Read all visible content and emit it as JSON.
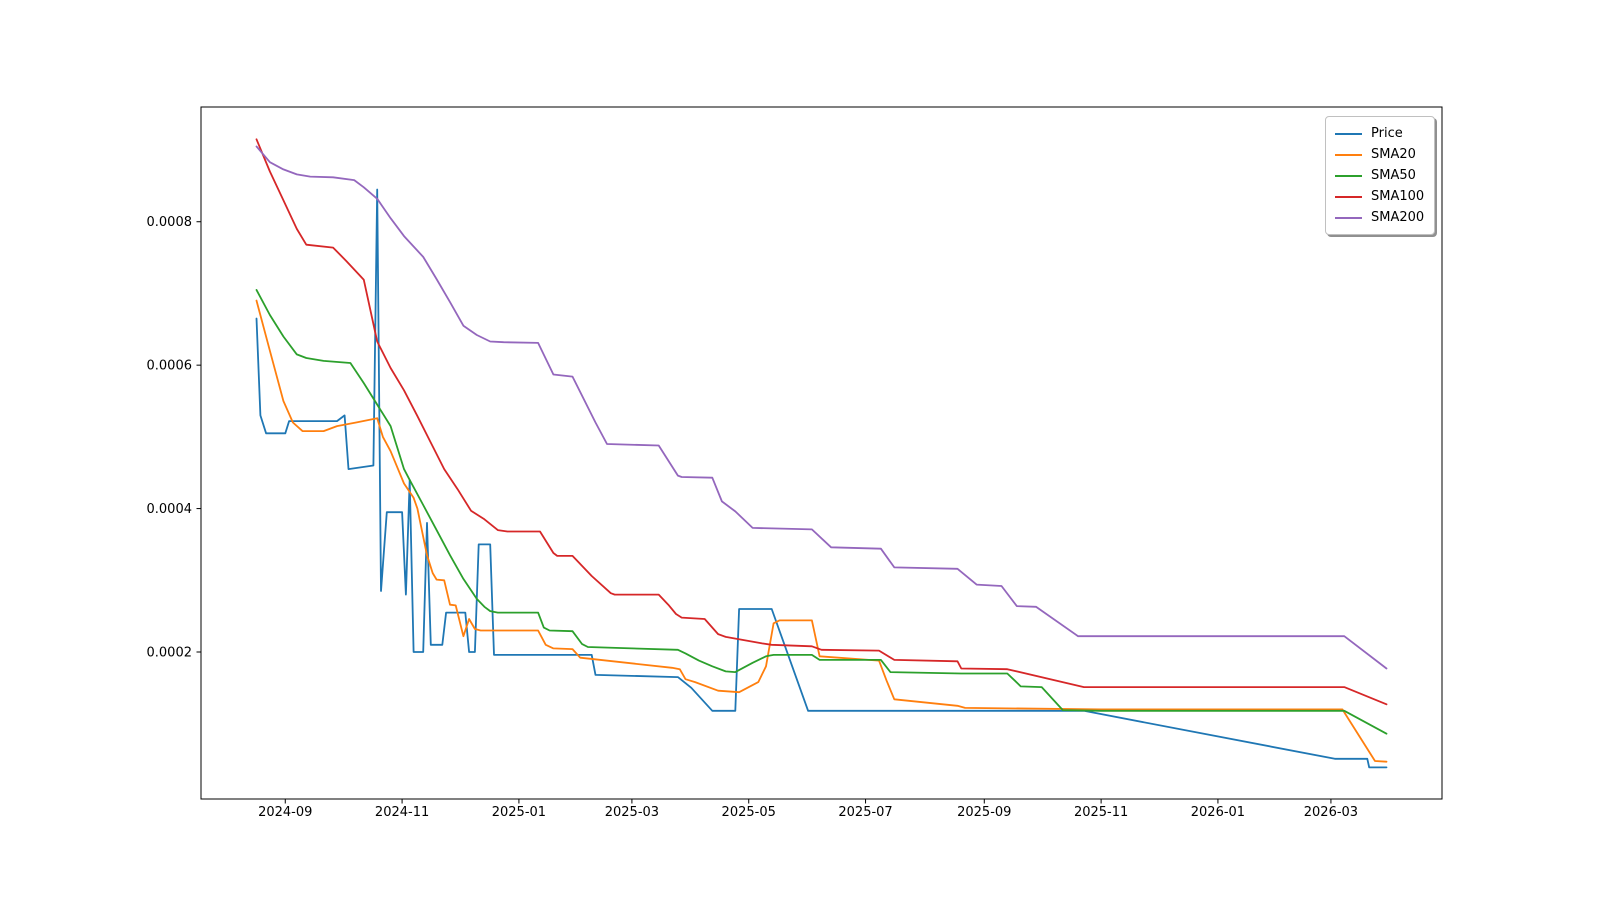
{
  "figure": {
    "background": "#ffffff"
  },
  "chart_data": {
    "type": "line",
    "title": "",
    "xlabel": "",
    "ylabel": "",
    "grid": false,
    "legend_position": "upper right",
    "xlim": [
      "2024-07-19",
      "2026-04-28"
    ],
    "ylim": [
      -5e-06,
      0.00096
    ],
    "x_ticks": [
      {
        "date": "2024-09-01",
        "label": "2024-09"
      },
      {
        "date": "2024-11-01",
        "label": "2024-11"
      },
      {
        "date": "2025-01-01",
        "label": "2025-01"
      },
      {
        "date": "2025-03-01",
        "label": "2025-03"
      },
      {
        "date": "2025-05-01",
        "label": "2025-05"
      },
      {
        "date": "2025-07-01",
        "label": "2025-07"
      },
      {
        "date": "2025-09-01",
        "label": "2025-09"
      },
      {
        "date": "2025-11-01",
        "label": "2025-11"
      },
      {
        "date": "2026-01-01",
        "label": "2026-01"
      },
      {
        "date": "2026-03-01",
        "label": "2026-03"
      }
    ],
    "y_ticks": [
      {
        "value": 0.0002,
        "label": "0.0002"
      },
      {
        "value": 0.0004,
        "label": "0.0004"
      },
      {
        "value": 0.0006,
        "label": "0.0006"
      },
      {
        "value": 0.0008,
        "label": "0.0008"
      }
    ],
    "series": [
      {
        "name": "Price",
        "color": "#1f77b4",
        "points": [
          [
            "2024-08-17",
            0.000665
          ],
          [
            "2024-08-19",
            0.00053
          ],
          [
            "2024-08-22",
            0.000505
          ],
          [
            "2024-09-01",
            0.000505
          ],
          [
            "2024-09-03",
            0.000522
          ],
          [
            "2024-09-28",
            0.000522
          ],
          [
            "2024-10-02",
            0.00053
          ],
          [
            "2024-10-04",
            0.000455
          ],
          [
            "2024-10-17",
            0.00046
          ],
          [
            "2024-10-19",
            0.000845
          ],
          [
            "2024-10-21",
            0.000285
          ],
          [
            "2024-10-24",
            0.000395
          ],
          [
            "2024-11-01",
            0.000395
          ],
          [
            "2024-11-03",
            0.00028
          ],
          [
            "2024-11-05",
            0.00044
          ],
          [
            "2024-11-07",
            0.0002
          ],
          [
            "2024-11-12",
            0.0002
          ],
          [
            "2024-11-14",
            0.00038
          ],
          [
            "2024-11-16",
            0.00021
          ],
          [
            "2024-11-22",
            0.00021
          ],
          [
            "2024-11-24",
            0.000255
          ],
          [
            "2024-12-04",
            0.000255
          ],
          [
            "2024-12-06",
            0.0002
          ],
          [
            "2024-12-09",
            0.0002
          ],
          [
            "2024-12-11",
            0.00035
          ],
          [
            "2024-12-17",
            0.00035
          ],
          [
            "2024-12-19",
            0.000196
          ],
          [
            "2025-02-08",
            0.000196
          ],
          [
            "2025-02-10",
            0.000168
          ],
          [
            "2025-03-25",
            0.000165
          ],
          [
            "2025-04-01",
            0.00015
          ],
          [
            "2025-04-12",
            0.000118
          ],
          [
            "2025-04-24",
            0.000118
          ],
          [
            "2025-04-26",
            0.00026
          ],
          [
            "2025-05-13",
            0.00026
          ],
          [
            "2025-06-01",
            0.000118
          ],
          [
            "2025-10-23",
            0.000118
          ],
          [
            "2026-03-03",
            5.1e-05
          ],
          [
            "2026-03-20",
            5.1e-05
          ],
          [
            "2026-03-21",
            3.9e-05
          ],
          [
            "2026-03-30",
            3.9e-05
          ]
        ]
      },
      {
        "name": "SMA20",
        "color": "#ff7f0e",
        "points": [
          [
            "2024-08-17",
            0.00069
          ],
          [
            "2024-08-24",
            0.00062
          ],
          [
            "2024-08-31",
            0.00055
          ],
          [
            "2024-09-05",
            0.00052
          ],
          [
            "2024-09-10",
            0.000508
          ],
          [
            "2024-09-21",
            0.000508
          ],
          [
            "2024-09-28",
            0.000515
          ],
          [
            "2024-10-08",
            0.00052
          ],
          [
            "2024-10-19",
            0.000526
          ],
          [
            "2024-10-22",
            0.0005
          ],
          [
            "2024-10-26",
            0.00048
          ],
          [
            "2024-11-02",
            0.000435
          ],
          [
            "2024-11-07",
            0.000415
          ],
          [
            "2024-11-09",
            0.0004
          ],
          [
            "2024-11-14",
            0.000335
          ],
          [
            "2024-11-17",
            0.00031
          ],
          [
            "2024-11-19",
            0.000301
          ],
          [
            "2024-11-23",
            0.0003
          ],
          [
            "2024-11-26",
            0.000266
          ],
          [
            "2024-11-29",
            0.000265
          ],
          [
            "2024-12-03",
            0.000222
          ],
          [
            "2024-12-06",
            0.000246
          ],
          [
            "2024-12-09",
            0.000232
          ],
          [
            "2024-12-12",
            0.00023
          ],
          [
            "2025-01-11",
            0.00023
          ],
          [
            "2025-01-15",
            0.00021
          ],
          [
            "2025-01-19",
            0.000205
          ],
          [
            "2025-01-29",
            0.000204
          ],
          [
            "2025-02-02",
            0.000192
          ],
          [
            "2025-03-22",
            0.000178
          ],
          [
            "2025-03-26",
            0.000176
          ],
          [
            "2025-03-29",
            0.000162
          ],
          [
            "2025-04-03",
            0.000158
          ],
          [
            "2025-04-15",
            0.000146
          ],
          [
            "2025-04-26",
            0.000144
          ],
          [
            "2025-05-06",
            0.000158
          ],
          [
            "2025-05-10",
            0.00018
          ],
          [
            "2025-05-14",
            0.00024
          ],
          [
            "2025-05-17",
            0.000244
          ],
          [
            "2025-06-03",
            0.000244
          ],
          [
            "2025-06-07",
            0.000194
          ],
          [
            "2025-07-08",
            0.000188
          ],
          [
            "2025-07-12",
            0.00016
          ],
          [
            "2025-07-16",
            0.000134
          ],
          [
            "2025-08-18",
            0.000125
          ],
          [
            "2025-08-22",
            0.000122
          ],
          [
            "2025-11-01",
            0.00012
          ],
          [
            "2026-03-07",
            0.00012
          ],
          [
            "2026-03-24",
            4.8e-05
          ],
          [
            "2026-03-30",
            4.7e-05
          ]
        ]
      },
      {
        "name": "SMA50",
        "color": "#2ca02c",
        "points": [
          [
            "2024-08-17",
            0.000705
          ],
          [
            "2024-08-24",
            0.00067
          ],
          [
            "2024-08-31",
            0.00064
          ],
          [
            "2024-09-07",
            0.000615
          ],
          [
            "2024-09-12",
            0.00061
          ],
          [
            "2024-09-21",
            0.000606
          ],
          [
            "2024-10-05",
            0.000603
          ],
          [
            "2024-10-12",
            0.000575
          ],
          [
            "2024-10-19",
            0.000545
          ],
          [
            "2024-10-26",
            0.000515
          ],
          [
            "2024-11-02",
            0.000455
          ],
          [
            "2024-11-05",
            0.00044
          ],
          [
            "2024-11-12",
            0.000405
          ],
          [
            "2024-11-19",
            0.00037
          ],
          [
            "2024-11-26",
            0.000335
          ],
          [
            "2024-12-03",
            0.000302
          ],
          [
            "2024-12-10",
            0.000274
          ],
          [
            "2024-12-14",
            0.000263
          ],
          [
            "2024-12-17",
            0.000257
          ],
          [
            "2024-12-21",
            0.000255
          ],
          [
            "2025-01-11",
            0.000255
          ],
          [
            "2025-01-14",
            0.000234
          ],
          [
            "2025-01-17",
            0.00023
          ],
          [
            "2025-01-29",
            0.000229
          ],
          [
            "2025-02-03",
            0.000211
          ],
          [
            "2025-02-06",
            0.000207
          ],
          [
            "2025-03-25",
            0.000203
          ],
          [
            "2025-03-29",
            0.000198
          ],
          [
            "2025-04-05",
            0.000188
          ],
          [
            "2025-04-12",
            0.00018
          ],
          [
            "2025-04-19",
            0.000173
          ],
          [
            "2025-04-24",
            0.000172
          ],
          [
            "2025-05-03",
            0.000185
          ],
          [
            "2025-05-10",
            0.000194
          ],
          [
            "2025-05-14",
            0.000196
          ],
          [
            "2025-06-03",
            0.000196
          ],
          [
            "2025-06-07",
            0.000189
          ],
          [
            "2025-07-09",
            0.000189
          ],
          [
            "2025-07-14",
            0.000172
          ],
          [
            "2025-08-20",
            0.00017
          ],
          [
            "2025-09-13",
            0.00017
          ],
          [
            "2025-09-17",
            0.00016
          ],
          [
            "2025-09-20",
            0.000152
          ],
          [
            "2025-10-01",
            0.000151
          ],
          [
            "2025-10-12",
            0.000119
          ],
          [
            "2025-11-01",
            0.000118
          ],
          [
            "2026-03-08",
            0.000118
          ],
          [
            "2026-03-30",
            8.6e-05
          ]
        ]
      },
      {
        "name": "SMA100",
        "color": "#d62728",
        "points": [
          [
            "2024-08-17",
            0.000915
          ],
          [
            "2024-08-24",
            0.00087
          ],
          [
            "2024-08-31",
            0.00083
          ],
          [
            "2024-09-07",
            0.00079
          ],
          [
            "2024-09-12",
            0.000768
          ],
          [
            "2024-09-26",
            0.000764
          ],
          [
            "2024-10-03",
            0.000745
          ],
          [
            "2024-10-12",
            0.000719
          ],
          [
            "2024-10-19",
            0.000633
          ],
          [
            "2024-10-26",
            0.000596
          ],
          [
            "2024-11-02",
            0.000565
          ],
          [
            "2024-11-09",
            0.000529
          ],
          [
            "2024-11-16",
            0.000492
          ],
          [
            "2024-11-23",
            0.000455
          ],
          [
            "2024-11-30",
            0.000427
          ],
          [
            "2024-12-07",
            0.000397
          ],
          [
            "2024-12-14",
            0.000385
          ],
          [
            "2024-12-21",
            0.00037
          ],
          [
            "2024-12-26",
            0.000368
          ],
          [
            "2025-01-12",
            0.000368
          ],
          [
            "2025-01-19",
            0.000338
          ],
          [
            "2025-01-21",
            0.000334
          ],
          [
            "2025-01-29",
            0.000334
          ],
          [
            "2025-02-08",
            0.000306
          ],
          [
            "2025-02-18",
            0.000282
          ],
          [
            "2025-02-20",
            0.00028
          ],
          [
            "2025-03-15",
            0.00028
          ],
          [
            "2025-03-20",
            0.000266
          ],
          [
            "2025-03-24",
            0.000253
          ],
          [
            "2025-03-27",
            0.000248
          ],
          [
            "2025-04-08",
            0.000246
          ],
          [
            "2025-04-15",
            0.000225
          ],
          [
            "2025-04-19",
            0.000221
          ],
          [
            "2025-05-08",
            0.000212
          ],
          [
            "2025-05-13",
            0.00021
          ],
          [
            "2025-06-03",
            0.000208
          ],
          [
            "2025-06-08",
            0.000203
          ],
          [
            "2025-07-08",
            0.000202
          ],
          [
            "2025-07-16",
            0.000189
          ],
          [
            "2025-08-18",
            0.000187
          ],
          [
            "2025-08-20",
            0.000177
          ],
          [
            "2025-09-13",
            0.000176
          ],
          [
            "2025-10-23",
            0.000151
          ],
          [
            "2026-03-08",
            0.000151
          ],
          [
            "2026-03-30",
            0.000127
          ]
        ]
      },
      {
        "name": "SMA200",
        "color": "#9467bd",
        "points": [
          [
            "2024-08-17",
            0.000905
          ],
          [
            "2024-08-24",
            0.000883
          ],
          [
            "2024-08-31",
            0.000873
          ],
          [
            "2024-09-07",
            0.000866
          ],
          [
            "2024-09-14",
            0.000863
          ],
          [
            "2024-09-26",
            0.000862
          ],
          [
            "2024-10-07",
            0.000858
          ],
          [
            "2024-10-12",
            0.000848
          ],
          [
            "2024-10-19",
            0.000832
          ],
          [
            "2024-10-26",
            0.000805
          ],
          [
            "2024-11-02",
            0.00078
          ],
          [
            "2024-11-12",
            0.000751
          ],
          [
            "2024-11-19",
            0.00072
          ],
          [
            "2024-11-26",
            0.000688
          ],
          [
            "2024-12-03",
            0.000655
          ],
          [
            "2024-12-10",
            0.000642
          ],
          [
            "2024-12-17",
            0.000633
          ],
          [
            "2024-12-24",
            0.000632
          ],
          [
            "2025-01-11",
            0.000631
          ],
          [
            "2025-01-19",
            0.000587
          ],
          [
            "2025-01-29",
            0.000584
          ],
          [
            "2025-02-10",
            0.00052
          ],
          [
            "2025-02-16",
            0.00049
          ],
          [
            "2025-03-15",
            0.000488
          ],
          [
            "2025-03-25",
            0.000446
          ],
          [
            "2025-03-27",
            0.000444
          ],
          [
            "2025-04-12",
            0.000443
          ],
          [
            "2025-04-17",
            0.00041
          ],
          [
            "2025-04-24",
            0.000396
          ],
          [
            "2025-05-03",
            0.000373
          ],
          [
            "2025-06-03",
            0.000371
          ],
          [
            "2025-06-13",
            0.000346
          ],
          [
            "2025-07-09",
            0.000344
          ],
          [
            "2025-07-16",
            0.000318
          ],
          [
            "2025-08-18",
            0.000316
          ],
          [
            "2025-08-28",
            0.000294
          ],
          [
            "2025-09-10",
            0.000292
          ],
          [
            "2025-09-18",
            0.000264
          ],
          [
            "2025-09-28",
            0.000263
          ],
          [
            "2025-10-20",
            0.000222
          ],
          [
            "2026-03-08",
            0.000222
          ],
          [
            "2026-03-30",
            0.000177
          ]
        ]
      }
    ]
  }
}
